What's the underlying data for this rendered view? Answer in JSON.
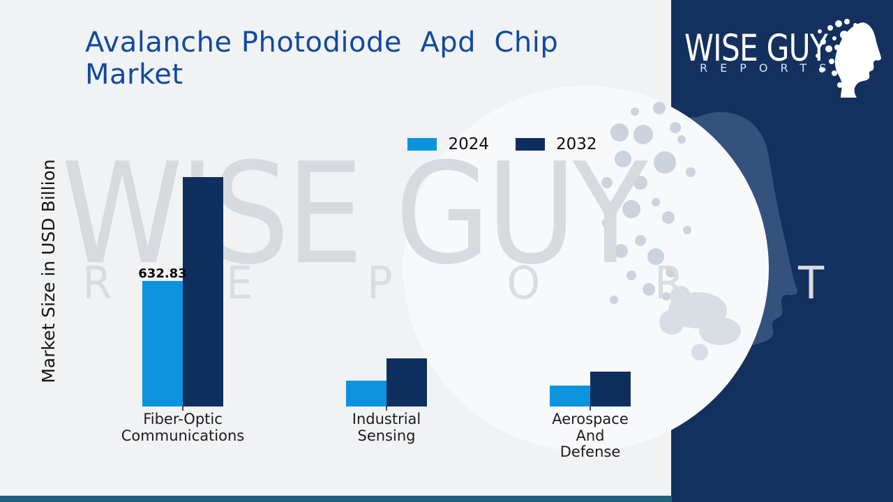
{
  "header": {
    "title_line1": "Avalanche Photodiode  Apd  Chip",
    "title_line2": "Market"
  },
  "watermark": {
    "line1": "WISE GUY",
    "line2": "R E P O R T S"
  },
  "brand": {
    "name": "WISE GUY",
    "sub": "REPORTS"
  },
  "chart_data": {
    "type": "bar",
    "title": "Avalanche Photodiode Apd Chip Market",
    "ylabel": "Market Size in USD Billion",
    "xlabel": "",
    "categories": [
      "Fiber-Optic\nCommunications",
      "Industrial\nSensing",
      "Aerospace\nAnd\nDefense"
    ],
    "series": [
      {
        "name": "2024",
        "color": "#0b93de",
        "values": [
          632.83,
          130,
          105
        ]
      },
      {
        "name": "2032",
        "color": "#0e2f5d",
        "values": [
          1157,
          243,
          176
        ]
      }
    ],
    "value_labels": [
      {
        "category": 0,
        "series": 0,
        "text": "632.83"
      }
    ],
    "ylim": [
      0,
      1250
    ],
    "grid": false,
    "legend_position": "top-center"
  },
  "colors": {
    "background": "#f1f2f3",
    "title_blue": "#104a9e",
    "bar_2024": "#0b93de",
    "bar_2032": "#0e2f5d",
    "panel_navy": "#13305e",
    "silhouette_navy": "#35517e",
    "teal_bar": "#1d6080",
    "watermark_gray": "#d7dade"
  }
}
